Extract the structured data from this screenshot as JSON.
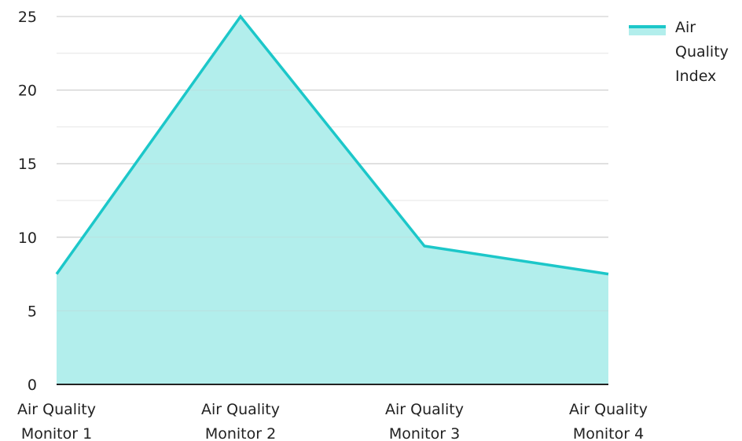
{
  "chart_data": {
    "type": "area",
    "categories": [
      [
        "Air Quality",
        "Monitor 1"
      ],
      [
        "Air Quality",
        "Monitor 2"
      ],
      [
        "Air Quality",
        "Monitor 3"
      ],
      [
        "Air Quality",
        "Monitor 4"
      ]
    ],
    "series": [
      {
        "name": "Air Quality Index",
        "values": [
          7.5,
          25,
          9.4,
          7.5
        ],
        "line_color": "#1cc7c9",
        "fill_color": "#b2eeec"
      }
    ],
    "yticks": [
      0,
      5,
      10,
      15,
      20,
      25
    ],
    "ylim": [
      0,
      25
    ],
    "grid": true,
    "legend": {
      "position": "top-right",
      "label_lines": [
        "Air",
        "Quality",
        "Index"
      ]
    },
    "title": "",
    "xlabel": "",
    "ylabel": ""
  },
  "colors": {
    "grid_major": "#c8c8c8",
    "grid_minor": "#e6e6e6",
    "axis": "#222222",
    "text": "#222222"
  }
}
